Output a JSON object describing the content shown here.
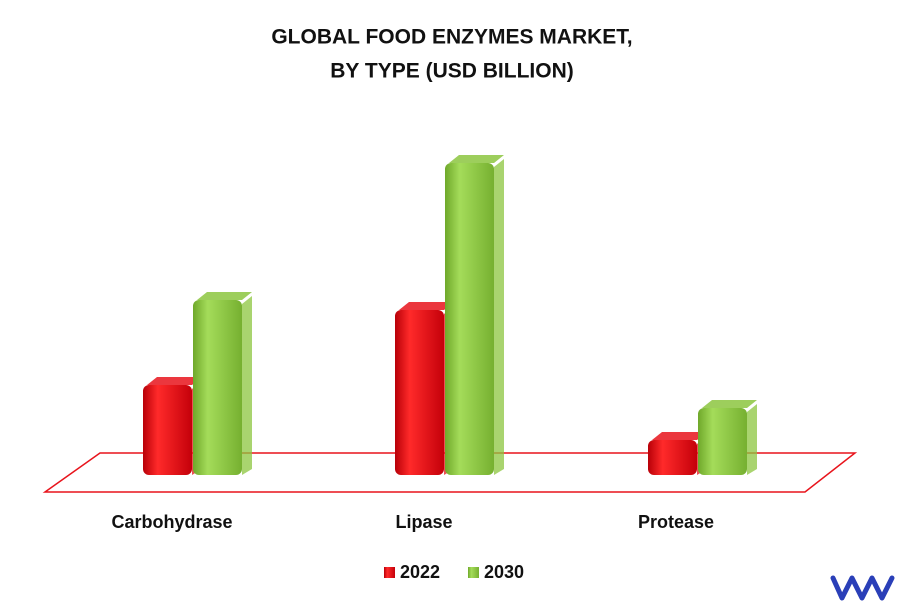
{
  "chart_data": {
    "type": "bar3d",
    "title": [
      "GLOBAL FOOD ENZYMES MARKET,",
      "BY TYPE (USD BILLION)"
    ],
    "categories": [
      "Carbohydrase",
      "Lipase",
      "Protease"
    ],
    "series": [
      {
        "name": "2022",
        "color": "#e8141c",
        "values": [
          90,
          165,
          35
        ]
      },
      {
        "name": "2030",
        "color": "#8cc63f",
        "values": [
          175,
          312,
          67
        ]
      }
    ]
  }
}
